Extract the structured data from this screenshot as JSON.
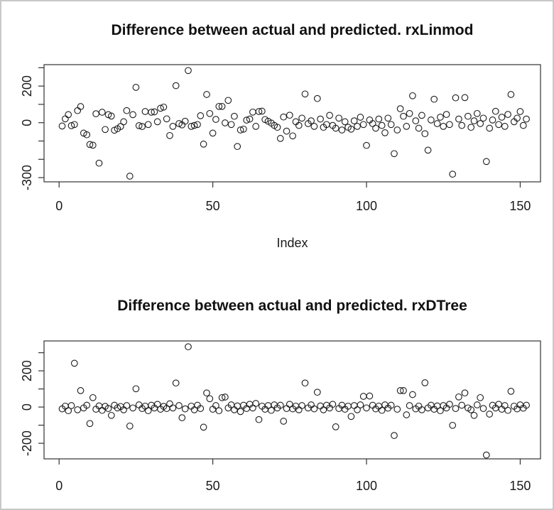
{
  "window": {
    "background": "#ffffff",
    "frame_border_color": "#c8c8c8",
    "axis_color": "#333333",
    "text_color": "#1a1a1a",
    "point_color": "#1a1a1a"
  },
  "chart_data": [
    {
      "type": "scatter",
      "title": "Difference between actual and predicted. rxLinmod",
      "xlabel": "Index",
      "ylabel": "",
      "marker": "open-circle",
      "grid": false,
      "legend": "none",
      "x_description": "observation index 1..152 (x value = position in y array, starting at 1)",
      "xticks": [
        0,
        50,
        100,
        150
      ],
      "xtick_labels": [
        "0",
        "50",
        "100",
        "150"
      ],
      "yticks": [
        300,
        200,
        100,
        0,
        -100,
        -200,
        -300
      ],
      "ytick_labels": [
        "",
        "200",
        "",
        "0",
        "",
        "",
        "-300"
      ],
      "xlim": [
        -4.9,
        156.6
      ],
      "ylim": [
        -323,
        317
      ],
      "y": [
        -18,
        21,
        44,
        -16,
        -10,
        66,
        88,
        -57,
        -66,
        -119,
        -123,
        49,
        -221,
        57,
        -37,
        44,
        36,
        -41,
        -33,
        -21,
        5,
        66,
        -292,
        44,
        193,
        -16,
        -21,
        61,
        -10,
        57,
        59,
        5,
        79,
        85,
        21,
        -70,
        -20,
        202,
        -5,
        -12,
        8,
        285,
        -20,
        -15,
        -10,
        38,
        -117,
        154,
        50,
        -57,
        18,
        89,
        89,
        -1,
        122,
        -10,
        35,
        -130,
        -40,
        -35,
        14,
        20,
        58,
        -20,
        61,
        63,
        17,
        8,
        -2,
        -15,
        -25,
        -86,
        31,
        -46,
        41,
        -72,
        5,
        -15,
        25,
        157,
        -5,
        10,
        -20,
        132,
        20,
        -25,
        -10,
        40,
        -15,
        -30,
        25,
        -40,
        5,
        -25,
        -35,
        10,
        -20,
        30,
        -10,
        -124,
        15,
        -5,
        -30,
        20,
        -15,
        -55,
        25,
        -10,
        -169,
        -40,
        76,
        35,
        -20,
        50,
        147,
        10,
        -30,
        40,
        -60,
        -150,
        15,
        128,
        -5,
        30,
        -20,
        45,
        -10,
        -281,
        136,
        20,
        -15,
        137,
        35,
        -25,
        10,
        50,
        -5,
        25,
        -212,
        -30,
        15,
        62,
        -10,
        30,
        -20,
        45,
        154,
        5,
        25,
        61,
        -15,
        20
      ]
    },
    {
      "type": "scatter",
      "title": "Difference between actual and predicted. rxDTree",
      "xlabel": "",
      "ylabel": "",
      "marker": "open-circle",
      "grid": false,
      "legend": "none",
      "x_description": "observation index 1..152 (x value = position in y array, starting at 1)",
      "xticks": [
        0,
        50,
        100,
        150
      ],
      "xtick_labels": [
        "0",
        "50",
        "100",
        "150"
      ],
      "yticks": [
        300,
        200,
        100,
        0,
        -100,
        -200
      ],
      "ytick_labels": [
        "",
        "200",
        "",
        "0",
        "",
        "-200"
      ],
      "xlim": [
        -4.9,
        156.6
      ],
      "ylim": [
        -286,
        365
      ],
      "y": [
        -10,
        5,
        -20,
        8,
        242,
        -15,
        91,
        -5,
        10,
        -91,
        52,
        -12,
        6,
        -18,
        4,
        -8,
        -46,
        10,
        -5,
        3,
        -15,
        8,
        -105,
        -5,
        101,
        12,
        -8,
        5,
        -20,
        10,
        -5,
        15,
        -12,
        4,
        -8,
        18,
        -5,
        133,
        8,
        -59,
        -10,
        333,
        5,
        -15,
        10,
        -8,
        -111,
        78,
        46,
        -12,
        8,
        -20,
        52,
        55,
        -5,
        12,
        -15,
        6,
        -25,
        10,
        -8,
        15,
        -5,
        20,
        -69,
        5,
        -12,
        8,
        -18,
        12,
        -5,
        10,
        -78,
        -8,
        15,
        -10,
        5,
        -15,
        8,
        133,
        -5,
        12,
        -10,
        82,
        6,
        -15,
        10,
        -5,
        15,
        -109,
        -8,
        10,
        -12,
        5,
        -52,
        8,
        -15,
        12,
        59,
        -5,
        61,
        10,
        -10,
        5,
        -18,
        12,
        -6,
        10,
        -157,
        -12,
        91,
        91,
        -43,
        8,
        69,
        -10,
        5,
        -15,
        134,
        -5,
        10,
        -12,
        6,
        -20,
        8,
        -5,
        15,
        -101,
        -8,
        56,
        10,
        78,
        -5,
        -15,
        -46,
        12,
        52,
        -8,
        -265,
        -39,
        10,
        -5,
        15,
        -12,
        8,
        -18,
        87,
        5,
        -10,
        12,
        -6,
        10
      ]
    }
  ]
}
